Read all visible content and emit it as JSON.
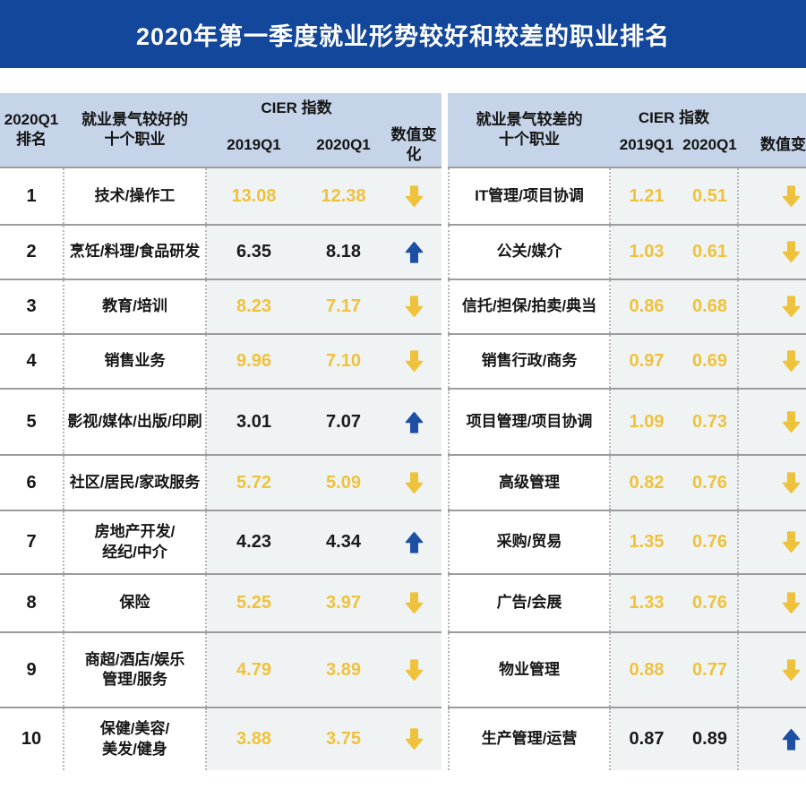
{
  "title": "2020年第一季度就业形势较好和较差的职业排名",
  "colors": {
    "title_bar_blue": "#13479c",
    "header_bg": "#c5d4e9",
    "value_cell_bg": "#f0f3f4",
    "down_yellow": "#efc23c",
    "up_blue": "#1d4fa3",
    "row_border": "#9c9c9c"
  },
  "table": {
    "left": {
      "rank_header": "2020Q1\n排名",
      "group_header": "就业景气较好的\n十个职业",
      "cier_header": "CIER 指数",
      "col_2019": "2019Q1",
      "col_2020": "2020Q1",
      "col_change": "数值变化"
    },
    "right": {
      "group_header": "就业景气较差的\n十个职业",
      "cier_header": "CIER 指数",
      "col_2019": "2019Q1",
      "col_2020": "2020Q1",
      "col_change": "数值变化"
    }
  },
  "chart_data": {
    "type": "table",
    "title": "2020年第一季度就业形势较好和较差的职业排名",
    "index_name": "CIER 指数",
    "sections": [
      {
        "name": "就业景气较好的十个职业",
        "columns": [
          "2020Q1排名",
          "职业",
          "CIER指数 2019Q1",
          "CIER指数 2020Q1",
          "数值变化"
        ],
        "rows": [
          {
            "rank": 1,
            "profession": "技术/操作工",
            "q1_2019": "13.08",
            "q1_2020": "12.38",
            "change": "down"
          },
          {
            "rank": 2,
            "profession": "烹饪/料理/食品研发",
            "q1_2019": "6.35",
            "q1_2020": "8.18",
            "change": "up"
          },
          {
            "rank": 3,
            "profession": "教育/培训",
            "q1_2019": "8.23",
            "q1_2020": "7.17",
            "change": "down"
          },
          {
            "rank": 4,
            "profession": "销售业务",
            "q1_2019": "9.96",
            "q1_2020": "7.10",
            "change": "down"
          },
          {
            "rank": 5,
            "profession": "影视/媒体/出版/印刷",
            "q1_2019": "3.01",
            "q1_2020": "7.07",
            "change": "up"
          },
          {
            "rank": 6,
            "profession": "社区/居民/家政服务",
            "q1_2019": "5.72",
            "q1_2020": "5.09",
            "change": "down"
          },
          {
            "rank": 7,
            "profession": "房地产开发/经纪/中介",
            "display": "房地产开发/\n经纪/中介",
            "q1_2019": "4.23",
            "q1_2020": "4.34",
            "change": "up"
          },
          {
            "rank": 8,
            "profession": "保险",
            "q1_2019": "5.25",
            "q1_2020": "3.97",
            "change": "down"
          },
          {
            "rank": 9,
            "profession": "商超/酒店/娱乐管理/服务",
            "display": "商超/酒店/娱乐\n管理/服务",
            "q1_2019": "4.79",
            "q1_2020": "3.89",
            "change": "down"
          },
          {
            "rank": 10,
            "profession": "保健/美容/美发/健身",
            "display": "保健/美容/\n美发/健身",
            "q1_2019": "3.88",
            "q1_2020": "3.75",
            "change": "down"
          }
        ]
      },
      {
        "name": "就业景气较差的十个职业",
        "columns": [
          "职业",
          "CIER指数 2019Q1",
          "CIER指数 2020Q1",
          "数值变化"
        ],
        "rows": [
          {
            "rank": 1,
            "profession": "IT管理/项目协调",
            "q1_2019": "1.21",
            "q1_2020": "0.51",
            "change": "down"
          },
          {
            "rank": 2,
            "profession": "公关/媒介",
            "q1_2019": "1.03",
            "q1_2020": "0.61",
            "change": "down"
          },
          {
            "rank": 3,
            "profession": "信托/担保/拍卖/典当",
            "q1_2019": "0.86",
            "q1_2020": "0.68",
            "change": "down"
          },
          {
            "rank": 4,
            "profession": "销售行政/商务",
            "q1_2019": "0.97",
            "q1_2020": "0.69",
            "change": "down"
          },
          {
            "rank": 5,
            "profession": "项目管理/项目协调",
            "q1_2019": "1.09",
            "q1_2020": "0.73",
            "change": "down"
          },
          {
            "rank": 6,
            "profession": "高级管理",
            "q1_2019": "0.82",
            "q1_2020": "0.76",
            "change": "down"
          },
          {
            "rank": 7,
            "profession": "采购/贸易",
            "q1_2019": "1.35",
            "q1_2020": "0.76",
            "change": "down"
          },
          {
            "rank": 8,
            "profession": "广告/会展",
            "q1_2019": "1.33",
            "q1_2020": "0.76",
            "change": "down"
          },
          {
            "rank": 9,
            "profession": "物业管理",
            "q1_2019": "0.88",
            "q1_2020": "0.77",
            "change": "down"
          },
          {
            "rank": 10,
            "profession": "生产管理/运营",
            "q1_2019": "0.87",
            "q1_2020": "0.89",
            "change": "up"
          }
        ]
      }
    ]
  }
}
